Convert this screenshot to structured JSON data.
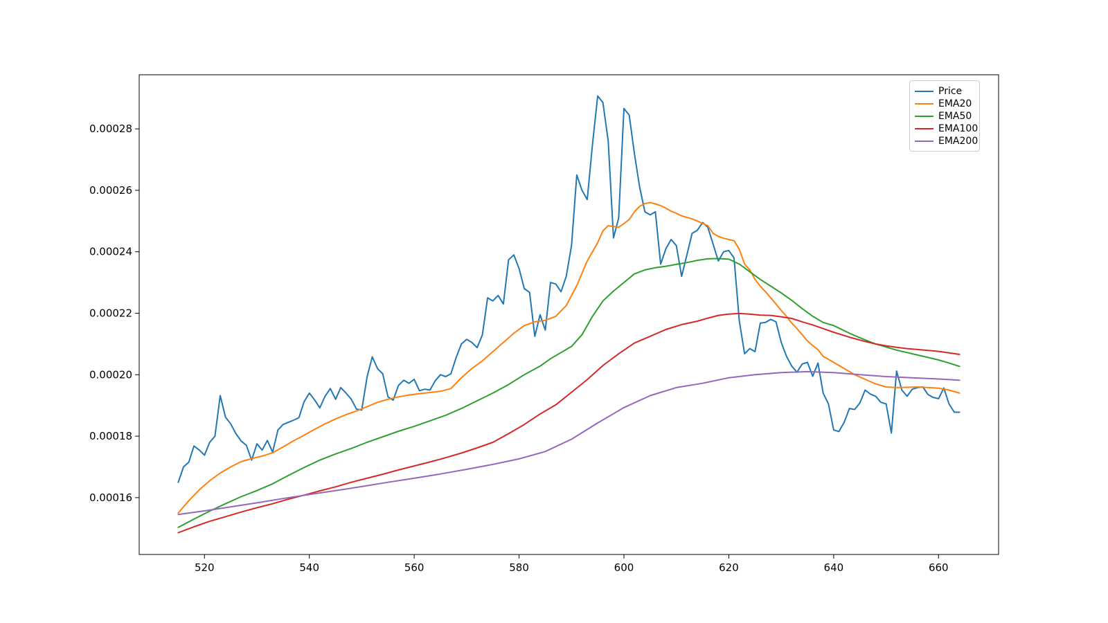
{
  "figure": {
    "background": "#ffffff"
  },
  "chart_data": {
    "type": "line",
    "title": "",
    "xlabel": "",
    "ylabel": "",
    "grid": false,
    "legend_position": "upper right",
    "y_scale": 0.0001,
    "xlim": [
      507.55,
      671.45
    ],
    "ylim": [
      1.415,
      2.976
    ],
    "x_ticks": {
      "values": [
        520,
        540,
        560,
        580,
        600,
        620,
        640,
        660
      ],
      "labels": [
        "520",
        "540",
        "560",
        "580",
        "600",
        "620",
        "640",
        "660"
      ]
    },
    "y_ticks": {
      "values": [
        1.6,
        1.8,
        2.0,
        2.2,
        2.4,
        2.6,
        2.8
      ],
      "labels": [
        "0.00016",
        "0.00018",
        "0.00020",
        "0.00022",
        "0.00024",
        "0.00026",
        "0.00028"
      ]
    },
    "series": [
      {
        "name": "Price",
        "color": "#1f77b4",
        "x_range": [
          515,
          664
        ],
        "y": [
          1.65,
          1.7,
          1.715,
          1.768,
          1.755,
          1.738,
          1.78,
          1.8,
          1.932,
          1.862,
          1.84,
          1.808,
          1.784,
          1.77,
          1.722,
          1.775,
          1.755,
          1.786,
          1.748,
          1.82,
          1.838,
          1.845,
          1.852,
          1.86,
          1.912,
          1.94,
          1.918,
          1.892,
          1.93,
          1.955,
          1.92,
          1.958,
          1.94,
          1.92,
          1.888,
          1.885,
          1.992,
          2.058,
          2.02,
          2.003,
          1.928,
          1.917,
          1.965,
          1.982,
          1.972,
          1.985,
          1.948,
          1.953,
          1.95,
          1.98,
          2.0,
          1.994,
          2.003,
          2.056,
          2.1,
          2.115,
          2.105,
          2.088,
          2.13,
          2.25,
          2.24,
          2.258,
          2.23,
          2.374,
          2.39,
          2.345,
          2.28,
          2.268,
          2.125,
          2.195,
          2.145,
          2.3,
          2.295,
          2.27,
          2.32,
          2.42,
          2.65,
          2.6,
          2.57,
          2.75,
          2.907,
          2.885,
          2.76,
          2.445,
          2.51,
          2.866,
          2.845,
          2.72,
          2.61,
          2.53,
          2.52,
          2.53,
          2.36,
          2.41,
          2.44,
          2.42,
          2.32,
          2.39,
          2.46,
          2.47,
          2.495,
          2.48,
          2.425,
          2.37,
          2.4,
          2.404,
          2.38,
          2.175,
          2.068,
          2.085,
          2.075,
          2.168,
          2.17,
          2.18,
          2.172,
          2.105,
          2.06,
          2.028,
          2.008,
          2.035,
          2.04,
          1.995,
          2.038,
          1.94,
          1.905,
          1.82,
          1.815,
          1.845,
          1.89,
          1.887,
          1.908,
          1.95,
          1.937,
          1.93,
          1.91,
          1.905,
          1.81,
          2.012,
          1.95,
          1.93,
          1.953,
          1.958,
          1.96,
          1.935,
          1.926,
          1.922,
          1.957,
          1.905,
          1.878,
          1.878
        ]
      },
      {
        "name": "EMA20",
        "color": "#ff7f0e",
        "x": [
          515,
          517,
          519,
          521,
          523,
          525,
          527,
          529,
          531,
          533,
          535,
          537,
          539,
          541,
          543,
          545,
          547,
          549,
          551,
          553,
          555,
          557,
          559,
          561,
          563,
          565,
          567,
          569,
          571,
          573,
          575,
          577,
          579,
          581,
          583,
          585,
          587,
          589,
          591,
          593,
          595,
          596,
          597,
          598,
          599,
          600,
          601,
          602,
          603,
          604,
          605,
          606,
          607,
          608,
          609,
          610,
          611,
          612,
          613,
          614,
          615,
          616,
          617,
          618,
          619,
          620,
          621,
          622,
          623,
          624,
          625,
          626,
          627,
          628,
          629,
          630,
          631,
          632,
          633,
          634,
          635,
          636,
          637,
          638,
          640,
          642,
          644,
          646,
          648,
          650,
          652,
          654,
          656,
          658,
          660,
          662,
          664
        ],
        "y": [
          1.55,
          1.59,
          1.625,
          1.655,
          1.68,
          1.7,
          1.717,
          1.727,
          1.735,
          1.746,
          1.765,
          1.785,
          1.803,
          1.822,
          1.84,
          1.856,
          1.87,
          1.882,
          1.896,
          1.91,
          1.92,
          1.928,
          1.934,
          1.938,
          1.942,
          1.946,
          1.955,
          1.99,
          2.02,
          2.045,
          2.075,
          2.105,
          2.135,
          2.16,
          2.172,
          2.177,
          2.19,
          2.225,
          2.29,
          2.37,
          2.43,
          2.468,
          2.485,
          2.482,
          2.48,
          2.492,
          2.505,
          2.53,
          2.548,
          2.557,
          2.56,
          2.556,
          2.55,
          2.542,
          2.532,
          2.525,
          2.517,
          2.512,
          2.507,
          2.5,
          2.492,
          2.485,
          2.46,
          2.45,
          2.444,
          2.44,
          2.436,
          2.408,
          2.36,
          2.341,
          2.31,
          2.288,
          2.27,
          2.25,
          2.23,
          2.209,
          2.19,
          2.168,
          2.15,
          2.13,
          2.11,
          2.095,
          2.081,
          2.06,
          2.04,
          2.02,
          2.0,
          1.985,
          1.97,
          1.96,
          1.958,
          1.959,
          1.96,
          1.958,
          1.956,
          1.95,
          1.94
        ]
      },
      {
        "name": "EMA50",
        "color": "#2ca02c",
        "x": [
          515,
          518,
          521,
          524,
          527,
          530,
          533,
          536,
          539,
          542,
          545,
          548,
          551,
          554,
          557,
          560,
          563,
          566,
          569,
          572,
          575,
          578,
          581,
          584,
          586,
          588,
          590,
          592,
          594,
          596,
          598,
          600,
          602,
          604,
          606,
          608,
          610,
          612,
          614,
          616,
          618,
          620,
          622,
          624,
          626,
          628,
          630,
          632,
          634,
          636,
          638,
          640,
          643,
          646,
          648,
          650,
          652,
          654,
          656,
          658,
          660,
          662,
          664
        ],
        "y": [
          1.503,
          1.53,
          1.556,
          1.58,
          1.603,
          1.623,
          1.645,
          1.672,
          1.698,
          1.722,
          1.742,
          1.76,
          1.78,
          1.798,
          1.816,
          1.832,
          1.85,
          1.868,
          1.89,
          1.915,
          1.94,
          1.968,
          2.0,
          2.028,
          2.052,
          2.072,
          2.092,
          2.13,
          2.19,
          2.24,
          2.272,
          2.3,
          2.328,
          2.341,
          2.348,
          2.353,
          2.359,
          2.365,
          2.372,
          2.377,
          2.378,
          2.376,
          2.36,
          2.335,
          2.31,
          2.288,
          2.266,
          2.242,
          2.215,
          2.19,
          2.17,
          2.16,
          2.135,
          2.113,
          2.1,
          2.09,
          2.08,
          2.072,
          2.064,
          2.056,
          2.048,
          2.038,
          2.027
        ]
      },
      {
        "name": "EMA100",
        "color": "#d62728",
        "x": [
          515,
          518,
          521,
          524,
          527,
          530,
          533,
          536,
          539,
          542,
          545,
          548,
          551,
          554,
          557,
          560,
          563,
          566,
          569,
          572,
          575,
          578,
          581,
          584,
          587,
          590,
          593,
          596,
          599,
          602,
          605,
          608,
          611,
          614,
          616,
          618,
          620,
          622,
          624,
          626,
          628,
          630,
          632,
          634,
          636,
          638,
          640,
          643,
          646,
          648,
          650,
          652,
          654,
          656,
          658,
          660,
          662,
          664
        ],
        "y": [
          1.486,
          1.505,
          1.523,
          1.538,
          1.553,
          1.567,
          1.58,
          1.595,
          1.608,
          1.622,
          1.635,
          1.65,
          1.663,
          1.676,
          1.69,
          1.703,
          1.716,
          1.73,
          1.745,
          1.762,
          1.78,
          1.808,
          1.838,
          1.872,
          1.902,
          1.943,
          1.984,
          2.03,
          2.068,
          2.103,
          2.125,
          2.147,
          2.163,
          2.174,
          2.184,
          2.193,
          2.197,
          2.199,
          2.197,
          2.194,
          2.193,
          2.188,
          2.183,
          2.172,
          2.162,
          2.15,
          2.138,
          2.122,
          2.108,
          2.1,
          2.094,
          2.089,
          2.085,
          2.082,
          2.079,
          2.076,
          2.071,
          2.066
        ]
      },
      {
        "name": "EMA200",
        "color": "#9467bd",
        "x": [
          515,
          520,
          525,
          530,
          535,
          540,
          545,
          550,
          555,
          560,
          565,
          570,
          575,
          580,
          585,
          590,
          595,
          600,
          605,
          610,
          615,
          620,
          625,
          630,
          635,
          640,
          645,
          650,
          655,
          660,
          664
        ],
        "y": [
          1.545,
          1.557,
          1.57,
          1.583,
          1.597,
          1.61,
          1.623,
          1.636,
          1.65,
          1.663,
          1.677,
          1.692,
          1.708,
          1.726,
          1.75,
          1.79,
          1.843,
          1.893,
          1.932,
          1.958,
          1.972,
          1.99,
          2.0,
          2.007,
          2.01,
          2.007,
          2.0,
          1.994,
          1.99,
          1.986,
          1.982
        ]
      }
    ]
  }
}
